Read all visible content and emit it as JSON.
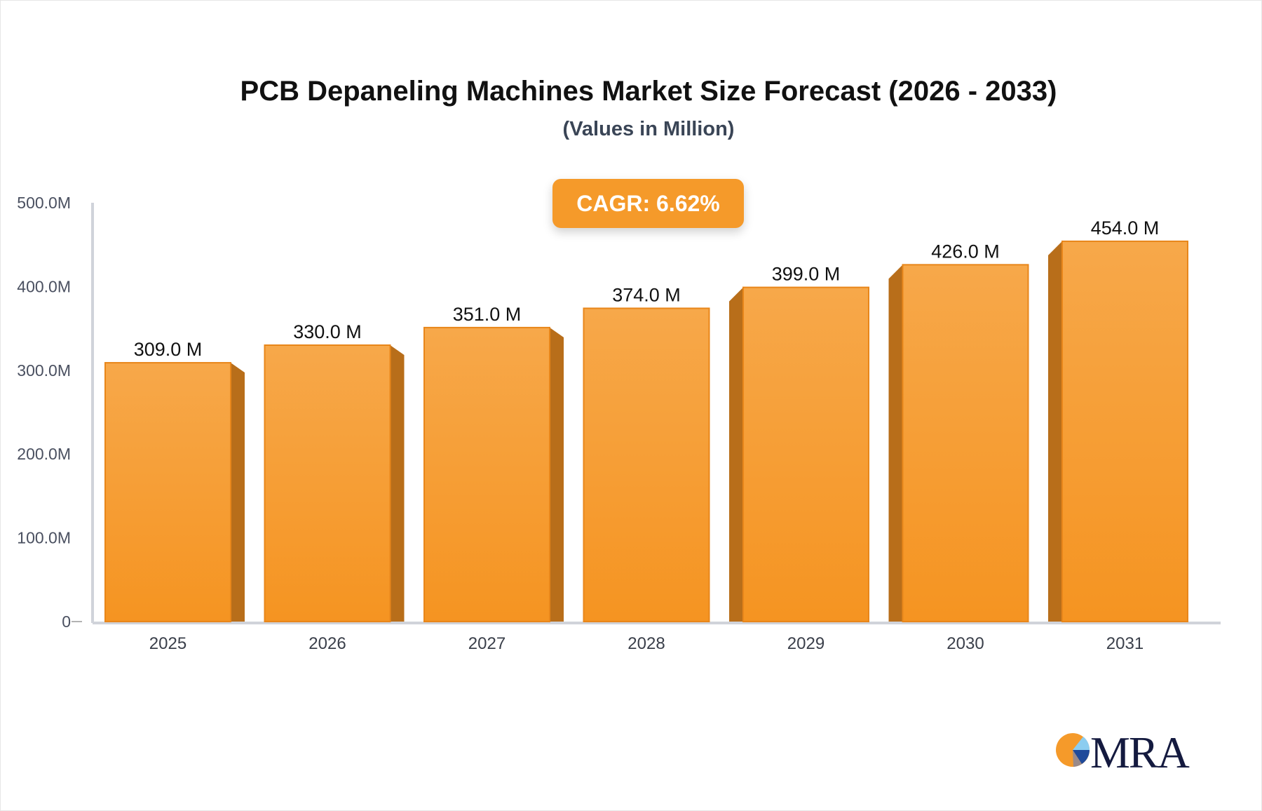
{
  "chart_data": {
    "type": "bar",
    "title": "PCB Depaneling Machines Market Size Forecast (2026 - 2033)",
    "subtitle": "(Values in Million)",
    "annotation": "CAGR: 6.62%",
    "categories": [
      "2025",
      "2026",
      "2027",
      "2028",
      "2029",
      "2030",
      "2031"
    ],
    "values": [
      309.0,
      330.0,
      351.0,
      374.0,
      399.0,
      426.0,
      454.0
    ],
    "data_labels": [
      "309.0 M",
      "330.0 M",
      "351.0 M",
      "374.0 M",
      "399.0 M",
      "426.0 M",
      "454.0 M"
    ],
    "y_ticks": [
      0,
      100,
      200,
      300,
      400,
      500
    ],
    "y_tick_labels": [
      "0",
      "100.0M",
      "200.0M",
      "300.0M",
      "400.0M",
      "500.0M"
    ],
    "ylim": [
      0,
      500
    ],
    "grid": false,
    "xlabel": "",
    "ylabel": "",
    "colors": {
      "bar_top": "#f7a84a",
      "bar_bottom": "#f59421",
      "bar_side": "#b86e1a",
      "axis": "#d0d3da"
    }
  },
  "logo": {
    "text": "MRA"
  }
}
